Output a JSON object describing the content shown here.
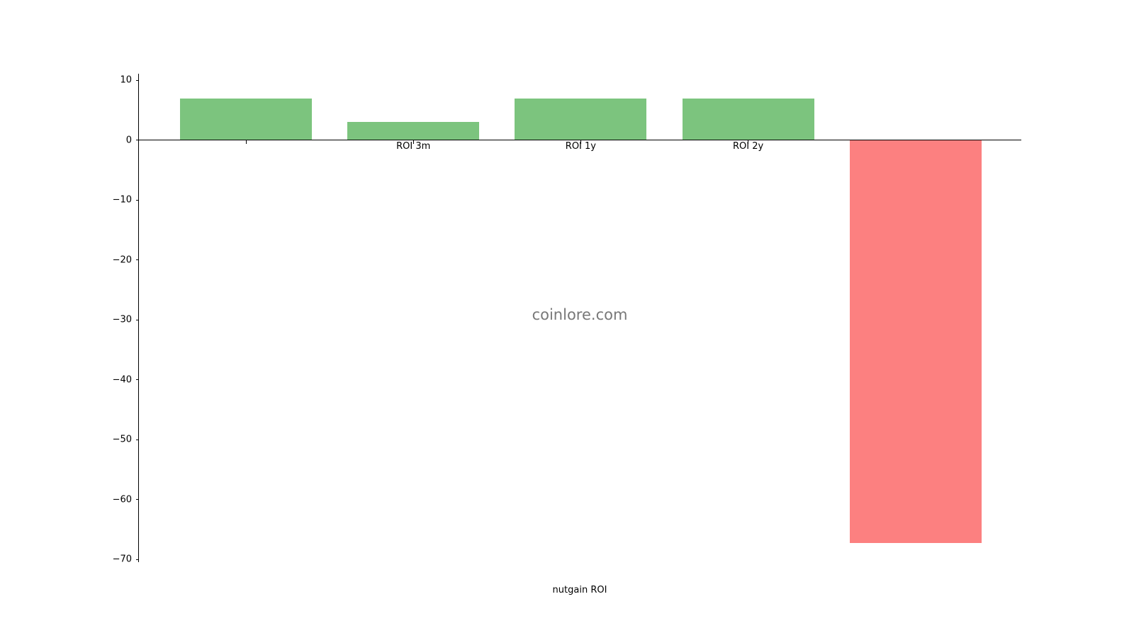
{
  "watermark": "coinlore.com",
  "chart_data": {
    "type": "bar",
    "title": "",
    "xlabel": "nutgain ROI",
    "ylabel": "",
    "categories": [
      "",
      "ROI 3m",
      "ROI 1y",
      "ROI 2y",
      ""
    ],
    "values": [
      6.9,
      3.0,
      6.9,
      6.9,
      -67.3
    ],
    "y_ticks": [
      10,
      0,
      -10,
      -20,
      -30,
      -40,
      -50,
      -60,
      -70
    ],
    "ylim": [
      -70.5,
      11
    ],
    "grid": false,
    "legend": null,
    "bar_note": "fifth category tick label is hidden behind the negative bar; first category label is blank",
    "colors": {
      "positive_bar": "#7cc47e",
      "negative_bar": "#fc8080",
      "axis": "#000000",
      "tick_text": "#000000",
      "watermark_text": "#787878",
      "background": "#ffffff"
    }
  }
}
